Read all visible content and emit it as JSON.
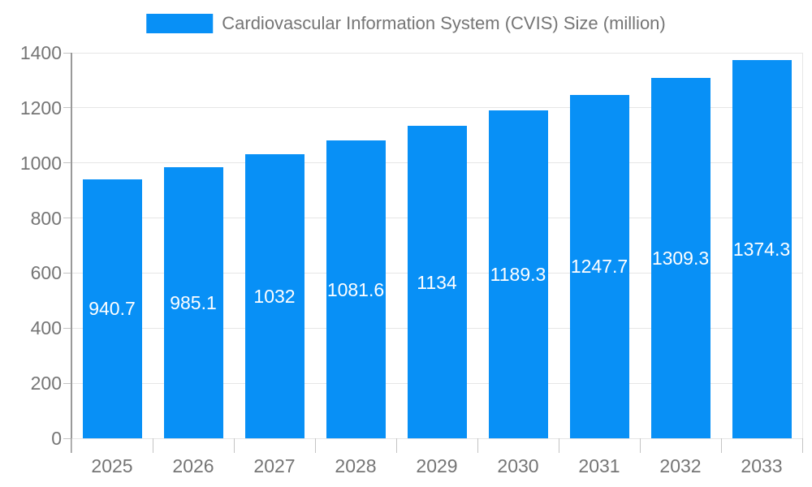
{
  "chart_data": {
    "type": "bar",
    "title": "Cardiovascular Information System (CVIS) Size (million)",
    "legend_label": "Cardiovascular Information System (CVIS) Size (million)",
    "legend_position": "top-center",
    "categories": [
      "2025",
      "2026",
      "2027",
      "2028",
      "2029",
      "2030",
      "2031",
      "2032",
      "2033"
    ],
    "values": [
      940.7,
      985.1,
      1032,
      1081.6,
      1134,
      1189.3,
      1247.7,
      1309.3,
      1374.3
    ],
    "bar_value_labels": [
      "940.7",
      "985.1",
      "1032",
      "1081.6",
      "1134",
      "1189.3",
      "1247.7",
      "1309.3",
      "1374.3"
    ],
    "xlabel": "",
    "ylabel": "",
    "ylim": [
      0,
      1400
    ],
    "ytick_step": 200,
    "ytick_labels": [
      "0",
      "200",
      "400",
      "600",
      "800",
      "1000",
      "1200",
      "1400"
    ],
    "grid": true,
    "colors": {
      "bar": "#0890f6",
      "bar_label_text": "#ffffff",
      "axis_text": "#757575",
      "gridline": "#e6e6e6",
      "axis_line": "#999999",
      "tick": "#c4c4c4",
      "background": "#ffffff"
    }
  }
}
